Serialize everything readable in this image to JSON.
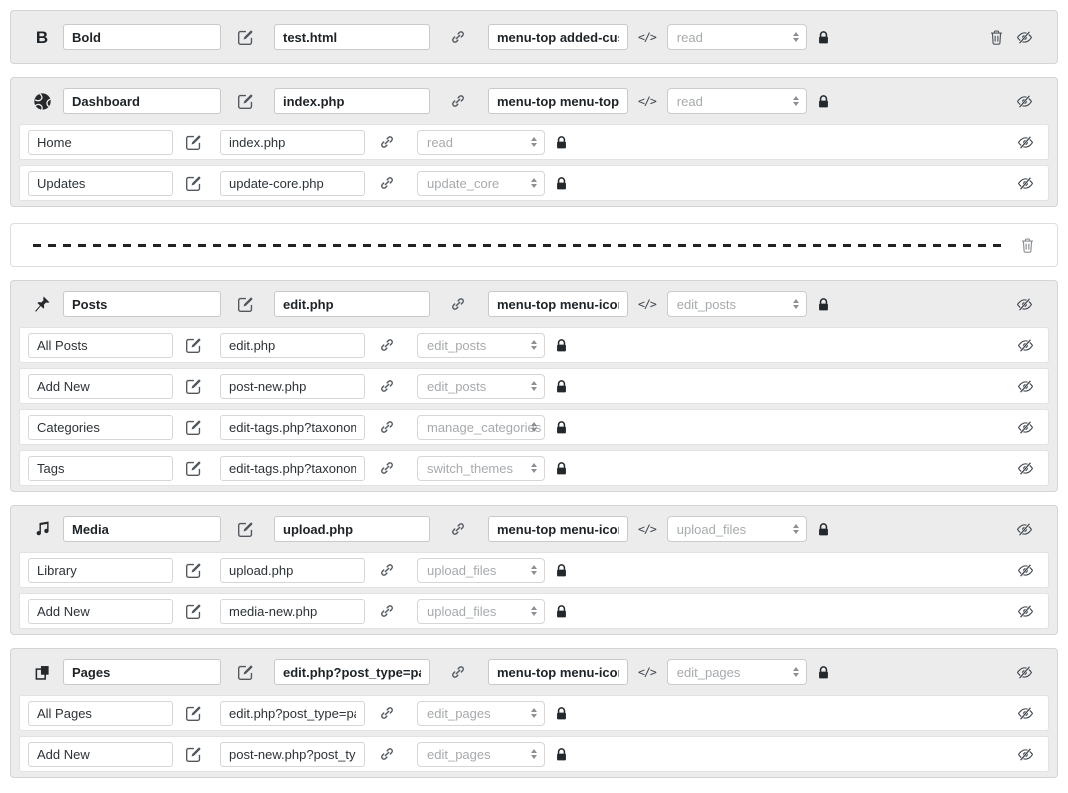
{
  "labels": {
    "code_button": "</>"
  },
  "colors": {
    "section_bg": "#ececec",
    "section_border": "#d4d4d4",
    "card_bg": "#ffffff",
    "placeholder_text": "#a7aaad",
    "separator_dash": "#222222",
    "icon": "#3c434a"
  },
  "icon_names": [
    "letter-b-icon",
    "globe-icon",
    "pushpin-icon",
    "music-notes-icon",
    "pages-icon",
    "edit-icon",
    "link-icon",
    "code-icon",
    "lock-icon",
    "trash-icon",
    "eye-slash-icon",
    "select-spinner-icon"
  ],
  "sections": [
    {
      "kind": "menu",
      "menu_icon": "letter-b",
      "item": {
        "title": "Bold",
        "file": "test.html",
        "css_classes": "menu-top added-custom",
        "capability": "read",
        "deletable": true,
        "hidden": true
      },
      "children": []
    },
    {
      "kind": "menu",
      "menu_icon": "globe",
      "item": {
        "title": "Dashboard",
        "file": "index.php",
        "css_classes": "menu-top menu-top-first",
        "capability": "read",
        "deletable": false,
        "hidden": true
      },
      "children": [
        {
          "title": "Home",
          "file": "index.php",
          "capability": "read",
          "hidden": true
        },
        {
          "title": "Updates",
          "file": "update-core.php",
          "capability": "update_core",
          "hidden": true
        }
      ]
    },
    {
      "kind": "separator",
      "deletable": true
    },
    {
      "kind": "menu",
      "menu_icon": "pushpin",
      "item": {
        "title": "Posts",
        "file": "edit.php",
        "css_classes": "menu-top menu-icon-post",
        "capability": "edit_posts",
        "deletable": false,
        "hidden": true
      },
      "children": [
        {
          "title": "All Posts",
          "file": "edit.php",
          "capability": "edit_posts",
          "hidden": true
        },
        {
          "title": "Add New",
          "file": "post-new.php",
          "capability": "edit_posts",
          "hidden": true
        },
        {
          "title": "Categories",
          "file": "edit-tags.php?taxonomy=category",
          "capability": "manage_categories",
          "hidden": true
        },
        {
          "title": "Tags",
          "file": "edit-tags.php?taxonomy=post_tag",
          "capability": "switch_themes",
          "hidden": true
        }
      ]
    },
    {
      "kind": "menu",
      "menu_icon": "music-notes",
      "item": {
        "title": "Media",
        "file": "upload.php",
        "css_classes": "menu-top menu-icon-media",
        "capability": "upload_files",
        "deletable": false,
        "hidden": true
      },
      "children": [
        {
          "title": "Library",
          "file": "upload.php",
          "capability": "upload_files",
          "hidden": true
        },
        {
          "title": "Add New",
          "file": "media-new.php",
          "capability": "upload_files",
          "hidden": true
        }
      ]
    },
    {
      "kind": "menu",
      "menu_icon": "pages",
      "item": {
        "title": "Pages",
        "file": "edit.php?post_type=page",
        "css_classes": "menu-top menu-icon-page",
        "capability": "edit_pages",
        "deletable": false,
        "hidden": true
      },
      "children": [
        {
          "title": "All Pages",
          "file": "edit.php?post_type=page",
          "capability": "edit_pages",
          "hidden": true
        },
        {
          "title": "Add New",
          "file": "post-new.php?post_type=page",
          "capability": "edit_pages",
          "hidden": true
        }
      ]
    }
  ]
}
